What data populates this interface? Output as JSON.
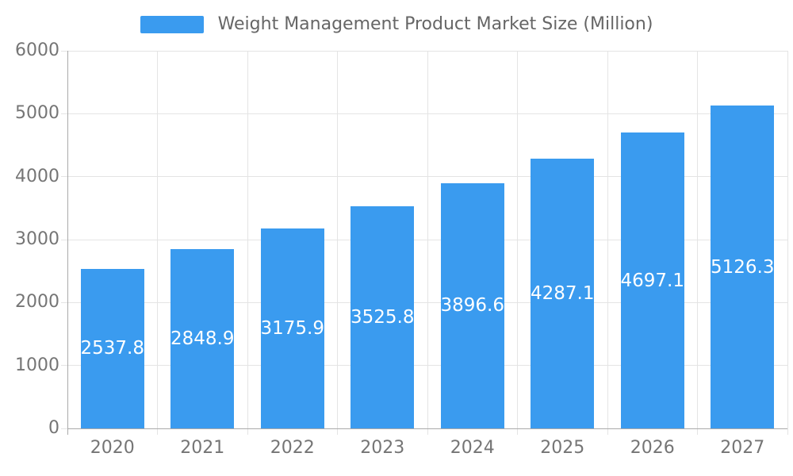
{
  "chart_data": {
    "type": "bar",
    "title": "Weight Management Product Market Size (Million)",
    "categories": [
      "2020",
      "2021",
      "2022",
      "2023",
      "2024",
      "2025",
      "2026",
      "2027"
    ],
    "series": [
      {
        "name": "Weight Management Product Market Size (Million)",
        "values": [
          2537.8,
          2848.9,
          3175.9,
          3525.8,
          3896.6,
          4287.1,
          4697.1,
          5126.3
        ]
      }
    ],
    "bar_value_labels": [
      "2537.8",
      "2848.9",
      "3175.9",
      "3525.8",
      "3896.6",
      "4287.1",
      "4697.1",
      "5126.3"
    ],
    "xlabel": "",
    "ylabel": "",
    "ylim": [
      0,
      6000
    ],
    "yticks": [
      0,
      1000,
      2000,
      3000,
      4000,
      5000,
      6000
    ],
    "grid": {
      "horizontal": true,
      "vertical": true
    },
    "legend_position": "top-center",
    "value_label_position": "inside-center"
  },
  "colors": {
    "bar": "#3A9BEF",
    "bar_label": "#FFFFFF",
    "gridline": "#E4E4E4",
    "axis_line": "#AAAAAA",
    "axis_text": "#757575",
    "legend_text": "#666666",
    "background": "#FFFFFF"
  }
}
